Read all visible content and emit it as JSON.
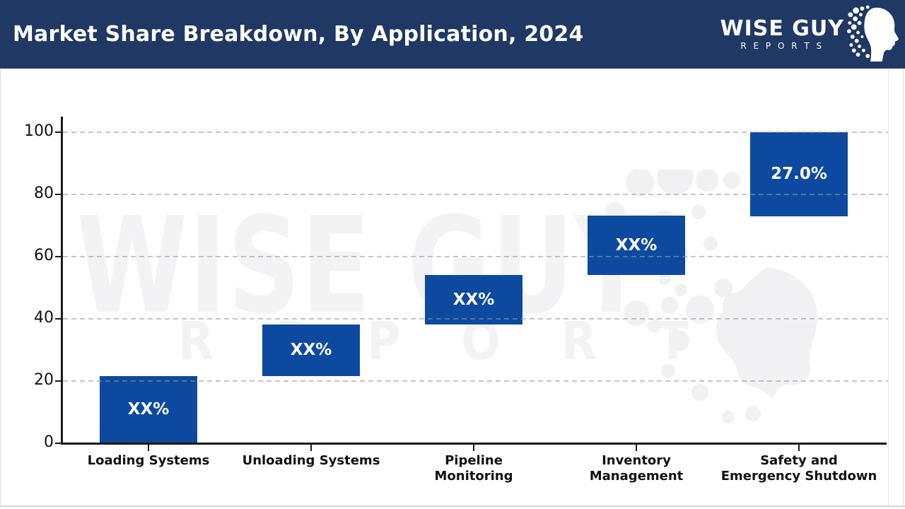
{
  "header": {
    "title": "Market Share Breakdown, By Application, 2024",
    "logo": {
      "line1": "WISE GUY",
      "line2": "R E P O R T S"
    }
  },
  "watermark": {
    "line1": "WISE GUY",
    "line2": "R E P O R T S"
  },
  "chart_data": {
    "type": "bar",
    "subtype": "waterfall",
    "title": "Market Share Breakdown, By Application, 2024",
    "xlabel": "",
    "ylabel": "",
    "categories": [
      "Loading Systems",
      "Unloading Systems",
      "Pipeline\nMonitoring",
      "Inventory\nManagement",
      "Safety and\nEmergency Shutdown"
    ],
    "segments": [
      {
        "category": "Loading Systems",
        "start": 0,
        "end": 21.6,
        "label": "XX%"
      },
      {
        "category": "Unloading Systems",
        "start": 21.6,
        "end": 38.2,
        "label": "XX%"
      },
      {
        "category": "Pipeline Monitoring",
        "start": 38.2,
        "end": 54.0,
        "label": "XX%"
      },
      {
        "category": "Inventory Management",
        "start": 54.0,
        "end": 73.2,
        "label": "XX%"
      },
      {
        "category": "Safety and Emergency Shutdown",
        "start": 73.0,
        "end": 100.0,
        "label": "27.0%"
      }
    ],
    "yticks": [
      0,
      20,
      40,
      60,
      80,
      100
    ],
    "ylim": [
      0,
      105
    ],
    "grid": "dashed horizontal, drawn over bars",
    "legend": "none",
    "colors": {
      "bar": "#0d4a9f",
      "header_bg": "#1f3864",
      "grid_line": "#d9d9d9",
      "axis": "#1a1a1a",
      "value_label": "#ffffff",
      "watermark": "#f3f3f6"
    }
  }
}
